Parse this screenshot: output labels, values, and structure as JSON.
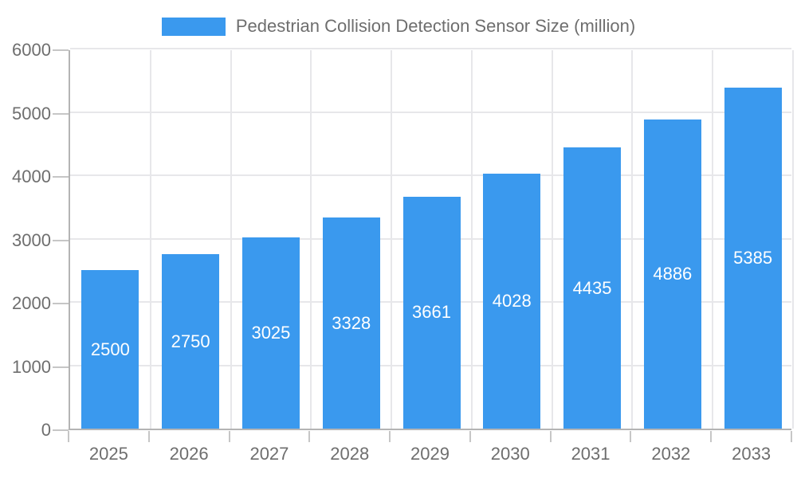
{
  "legend": {
    "label": "Pedestrian Collision Detection Sensor Size (million)"
  },
  "chart_data": {
    "type": "bar",
    "title": "Pedestrian Collision Detection Sensor Size (million)",
    "categories": [
      "2025",
      "2026",
      "2027",
      "2028",
      "2029",
      "2030",
      "2031",
      "2032",
      "2033"
    ],
    "values": [
      2500,
      2750,
      3025,
      3328,
      3661,
      4028,
      4435,
      4886,
      5385
    ],
    "value_labels": [
      "2500",
      "2750",
      "3025",
      "3328",
      "3661",
      "4028",
      "4435",
      "4886",
      "5385"
    ],
    "xlabel": "",
    "ylabel": "",
    "ylim": [
      0,
      6000
    ],
    "ytick_step": 1000,
    "y_tick_labels": [
      "0",
      "1000",
      "2000",
      "3000",
      "4000",
      "5000",
      "6000"
    ],
    "grid": true,
    "legend_position": "top"
  },
  "colors": {
    "bar": "#3A99EE",
    "grid": "#E7E7EA",
    "axis": "#B4B4B4",
    "tick": "#C6C6C6",
    "text": "#6E6E6E",
    "value_text": "#FFFFFF",
    "background": "#FFFFFF"
  }
}
